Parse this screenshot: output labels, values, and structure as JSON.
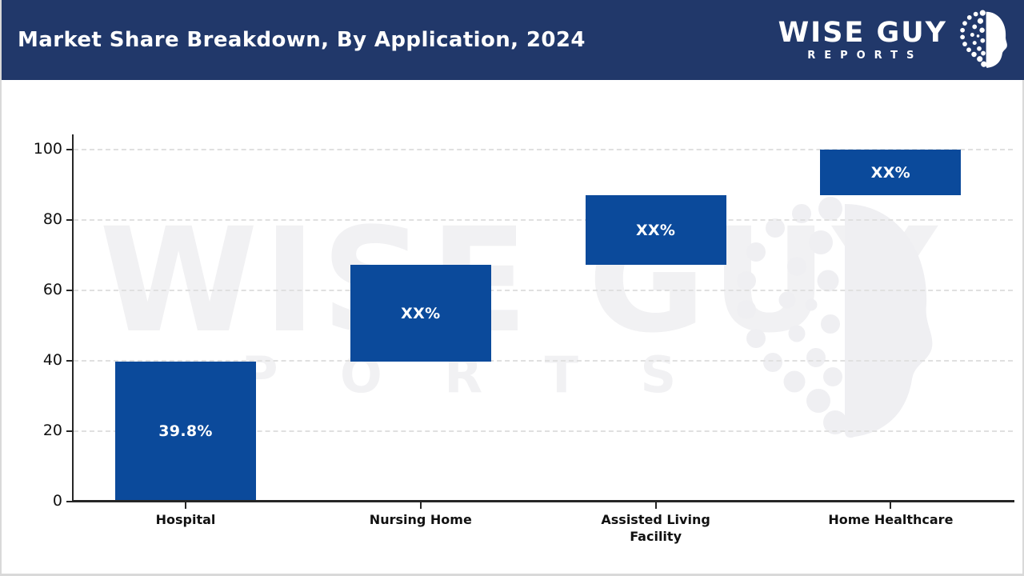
{
  "header": {
    "title": "Market Share Breakdown, By Application, 2024"
  },
  "brand": {
    "name": "WISE GUY",
    "subname": "REPORTS"
  },
  "watermark": {
    "line1": "WISE GUY",
    "line2": "P O R T S"
  },
  "chart_data": {
    "type": "bar",
    "subtype": "waterfall",
    "title": "Market Share Breakdown, By Application, 2024",
    "categories": [
      "Hospital",
      "Nursing Home",
      "Assisted Living Facility",
      "Home Healthcare"
    ],
    "segments": [
      {
        "category": "Hospital",
        "start": 0,
        "end": 39.8,
        "label": "39.8%"
      },
      {
        "category": "Nursing Home",
        "start": 39.8,
        "end": 67.2,
        "label": "XX%"
      },
      {
        "category": "Assisted Living Facility",
        "start": 67.2,
        "end": 87,
        "label": "XX%"
      },
      {
        "category": "Home Healthcare",
        "start": 87,
        "end": 100,
        "label": "XX%"
      }
    ],
    "xlabel": "",
    "ylabel": "",
    "ylim": [
      0,
      100
    ],
    "yticks": [
      0,
      20,
      40,
      60,
      80,
      100
    ],
    "grid": "horizontal-dashed",
    "legend": "none",
    "bar_color": "#0b4a9b",
    "bar_label_color": "#ffffff"
  },
  "colors": {
    "header_bg": "#21386a",
    "header_text": "#ffffff",
    "axis": "#262626",
    "grid": "#e0e0e0",
    "watermark": "#f1f1f3",
    "page_border": "#d9d9d9"
  }
}
